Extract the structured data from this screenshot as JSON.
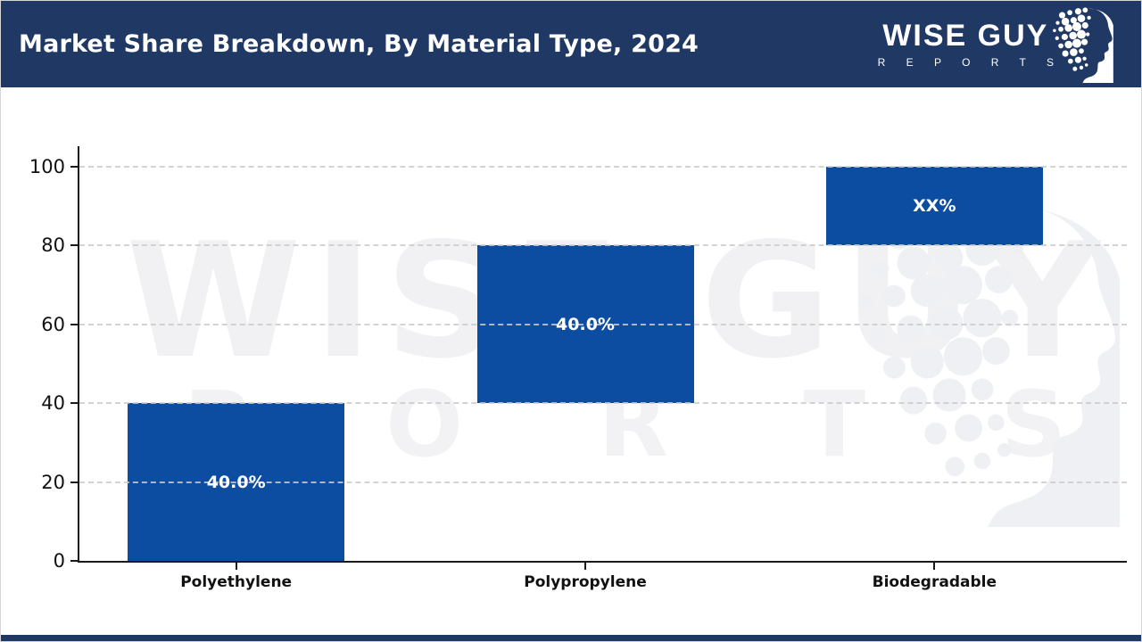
{
  "header": {
    "title": "Market Share Breakdown, By Material Type, 2024",
    "logo": {
      "line1": "WISE GUY",
      "line2": "R E P O R T S"
    }
  },
  "watermark": {
    "line1": "WISE GUY",
    "line2": "P O R T S"
  },
  "colors": {
    "navy": "#1f3864",
    "bar_blue": "#0c4da2",
    "gridline": "#d9d9d9",
    "axis": "#1a1a1a",
    "watermark_gray": "#f1f1f4"
  },
  "chart_data": {
    "type": "bar",
    "subtype": "floating-waterfall",
    "title": "Market Share Breakdown, By Material Type, 2024",
    "categories": [
      "Polyethylene",
      "Polypropylene",
      "Biodegradable"
    ],
    "series": [
      {
        "name": "Market Share (%)",
        "segments": [
          {
            "category": "Polyethylene",
            "start": 0,
            "end": 40,
            "value": 40,
            "label": "40.0%"
          },
          {
            "category": "Polypropylene",
            "start": 40,
            "end": 80,
            "value": 40,
            "label": "40.0%"
          },
          {
            "category": "Biodegradable",
            "start": 80,
            "end": 100,
            "value": 20,
            "label": "XX%"
          }
        ]
      }
    ],
    "xlabel": "",
    "ylabel": "",
    "y_ticks": [
      0,
      20,
      40,
      60,
      80,
      100
    ],
    "ylim": [
      0,
      105
    ],
    "grid": "horizontal-dashed",
    "legend": "none",
    "bar_color": "#0c4da2",
    "bar_label_color": "#ffffff"
  }
}
